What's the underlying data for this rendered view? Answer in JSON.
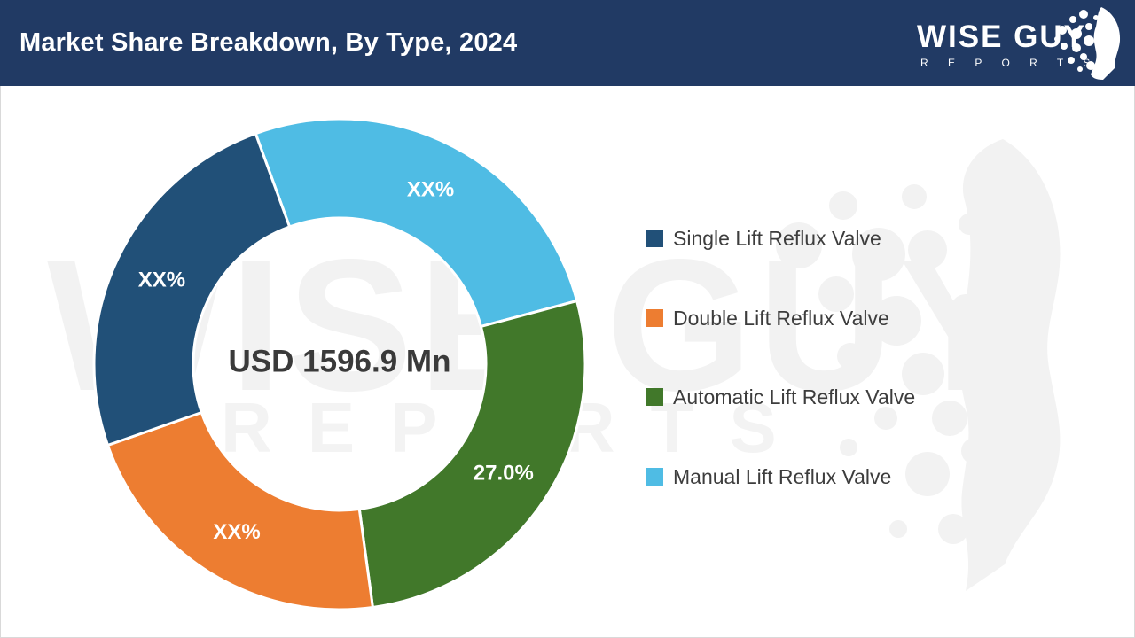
{
  "header": {
    "title": "Market Share Breakdown, By Type, 2024",
    "background_color": "#213A64",
    "logo": {
      "line1": "WISE GUY",
      "line2": "R E P O R T S"
    }
  },
  "watermark": {
    "line1": "WISE GUY",
    "line2": "REPORTS"
  },
  "chart_data": {
    "type": "pie",
    "subtype": "donut",
    "center_label": "USD 1596.9 Mn",
    "start_angle_deg": -20,
    "direction": "clockwise, segments drawn in reverse legend order",
    "donut_hole_ratio": 0.6,
    "legend_position": "right",
    "segments": [
      {
        "name": "Single Lift Reflux Valve",
        "display_label": "XX%",
        "pct": 24.8,
        "color": "#215078"
      },
      {
        "name": "Double Lift Reflux Valve",
        "display_label": "XX%",
        "pct": 21.8,
        "color": "#ED7D31"
      },
      {
        "name": "Automatic Lift Reflux Valve",
        "display_label": "27.0%",
        "pct": 27.0,
        "color": "#41782A"
      },
      {
        "name": "Manual Lift Reflux Valve",
        "display_label": "XX%",
        "pct": 26.4,
        "color": "#4FBCE4"
      }
    ]
  }
}
